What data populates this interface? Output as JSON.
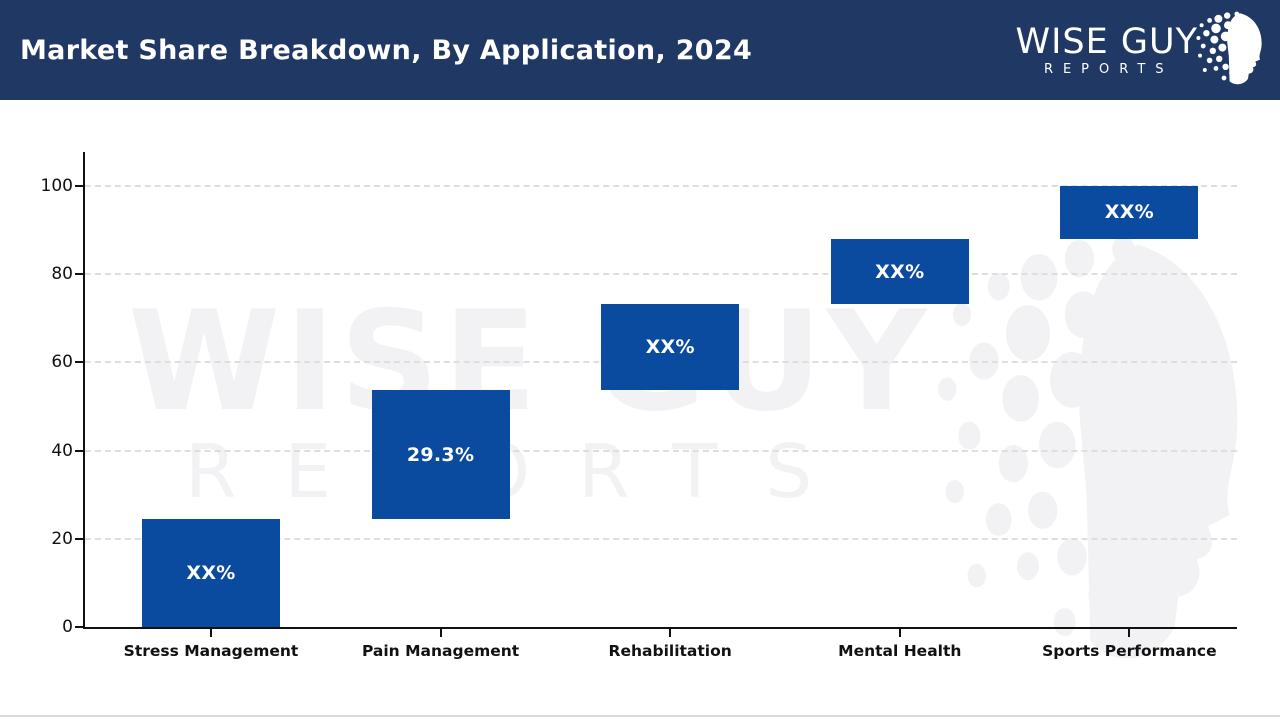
{
  "header": {
    "title": "Market Share Breakdown, By Application, 2024",
    "brand_line1": "WISE GUY",
    "brand_line2": "REPORTS"
  },
  "watermark": {
    "line1": "WISE GUY",
    "line2": "REPORTS"
  },
  "chart_data": {
    "type": "bar",
    "subtype": "waterfall",
    "title": "Market Share Breakdown, By Application, 2024",
    "categories": [
      "Stress Management",
      "Pain Management",
      "Rehabilitation",
      "Mental Health",
      "Sports Performance"
    ],
    "segments": [
      {
        "category": "Stress Management",
        "start": 0,
        "end": 24.4,
        "label": "XX%"
      },
      {
        "category": "Pain Management",
        "start": 24.4,
        "end": 53.7,
        "label": "29.3%"
      },
      {
        "category": "Rehabilitation",
        "start": 53.7,
        "end": 73.2,
        "label": "XX%"
      },
      {
        "category": "Mental Health",
        "start": 73.2,
        "end": 88.0,
        "label": "XX%"
      },
      {
        "category": "Sports Performance",
        "start": 88.0,
        "end": 100.0,
        "label": "XX%"
      }
    ],
    "yticks": [
      0,
      20,
      40,
      60,
      80,
      100
    ],
    "ylim": [
      0,
      107
    ],
    "xlabel": "",
    "ylabel": "",
    "grid": "horizontal-dashed",
    "legend": "none",
    "bar_color": "#0a4a9f",
    "bar_label_color": "#ffffff"
  },
  "colors": {
    "header_bg": "#1f3864",
    "bar": "#0a4a9f",
    "watermark": "#f2f2f4",
    "axis": "#111111",
    "grid": "#dedede"
  }
}
